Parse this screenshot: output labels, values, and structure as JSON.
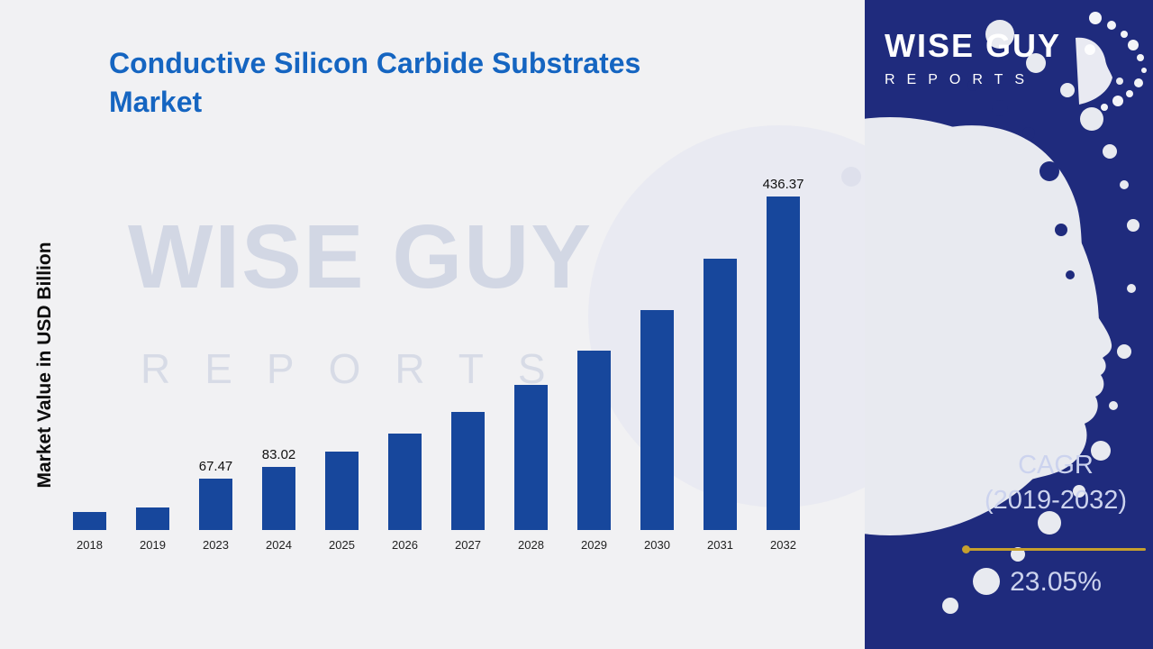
{
  "title": "Conductive Silicon Carbide Substrates Market",
  "y_axis_label": "Market Value in USD Billion",
  "watermark": {
    "line1": "WISE GUY",
    "line2": "REPORTS"
  },
  "brand": {
    "logo_line1": "WISE GUY",
    "logo_line2": "REPORTS"
  },
  "cagr": {
    "label": "CAGR",
    "range": "(2019-2032)",
    "value": "23.05%"
  },
  "colors": {
    "bar": "#17479c",
    "title_text": "#1565c1",
    "panel_bg": "#1f2b7d",
    "accent_gold": "#c6a02e"
  },
  "chart_data": {
    "type": "bar",
    "title": "Conductive Silicon Carbide Substrates Market",
    "ylabel": "Market Value in USD Billion",
    "categories": [
      "2018",
      "2019",
      "2023",
      "2024",
      "2025",
      "2026",
      "2027",
      "2028",
      "2029",
      "2030",
      "2031",
      "2032"
    ],
    "values": [
      23.9,
      29.4,
      67.47,
      83.02,
      102.2,
      125.7,
      154.7,
      190.3,
      234.2,
      288.2,
      354.6,
      436.37
    ],
    "point_labels": [
      "",
      "",
      "67.47",
      "83.02",
      "",
      "",
      "",
      "",
      "",
      "",
      "",
      "436.37"
    ],
    "ylim": [
      0,
      450
    ],
    "grid": false,
    "legend": "none",
    "cagr_percent": "23.05%",
    "cagr_period": "2019-2032"
  }
}
